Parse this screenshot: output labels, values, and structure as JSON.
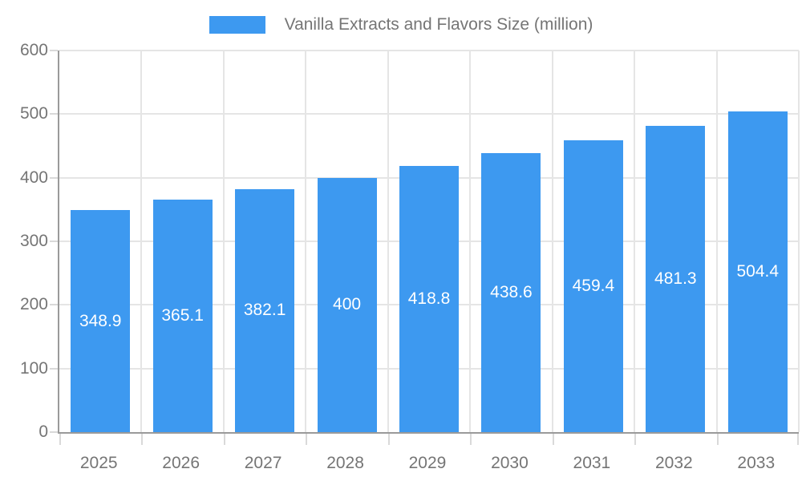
{
  "legend": {
    "label": "Vanilla Extracts and Flavors Size (million)"
  },
  "chart_data": {
    "type": "bar",
    "title": "Vanilla Extracts and Flavors Size (million)",
    "categories": [
      "2025",
      "2026",
      "2027",
      "2028",
      "2029",
      "2030",
      "2031",
      "2032",
      "2033"
    ],
    "values": [
      348.9,
      365.1,
      382.1,
      400,
      418.8,
      438.6,
      459.4,
      481.3,
      504.4
    ],
    "value_labels": [
      "348.9",
      "365.1",
      "382.1",
      "400",
      "418.8",
      "438.6",
      "459.4",
      "481.3",
      "504.4"
    ],
    "xlabel": "",
    "ylabel": "",
    "ylim": [
      0,
      600
    ],
    "yticks": [
      0,
      100,
      200,
      300,
      400,
      500,
      600
    ],
    "grid": true,
    "legend_position": "top-center",
    "bar_color": "#3D99F0",
    "axis_color": "#9a9a9a",
    "grid_color": "#e5e5e5",
    "tick_color": "#d9d9d9",
    "text_color": "#757575",
    "value_label_color": "#ffffff"
  }
}
